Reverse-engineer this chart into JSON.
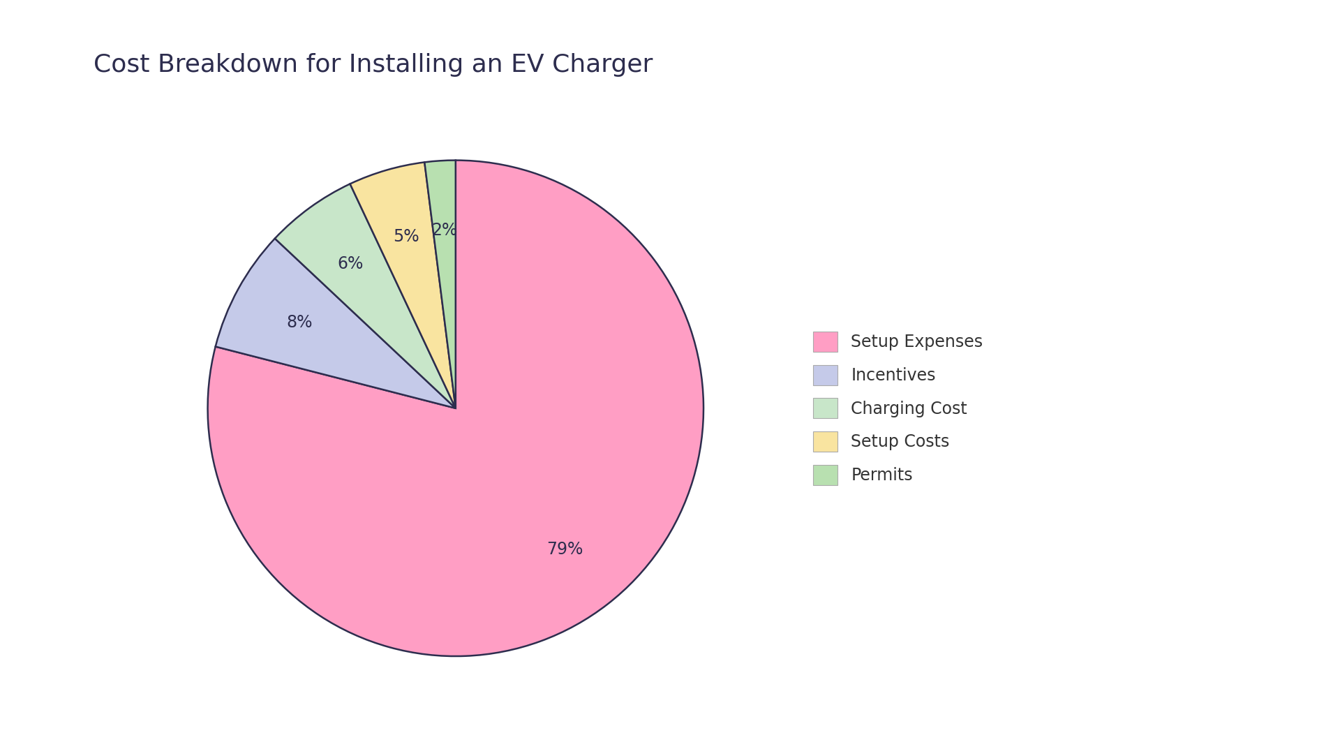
{
  "title": "Cost Breakdown for Installing an EV Charger",
  "labels": [
    "Setup Expenses",
    "Incentives",
    "Charging Cost",
    "Setup Costs",
    "Permits"
  ],
  "values": [
    79,
    8,
    6,
    5,
    2
  ],
  "colors": [
    "#FF9EC4",
    "#C5CAE9",
    "#C8E6C9",
    "#F9E4A0",
    "#B8E0B0"
  ],
  "edge_color": "#2d2d4e",
  "edge_width": 1.8,
  "background_color": "#ffffff",
  "title_fontsize": 26,
  "autopct_fontsize": 17,
  "legend_fontsize": 17,
  "start_angle": 90,
  "counterclock": false
}
